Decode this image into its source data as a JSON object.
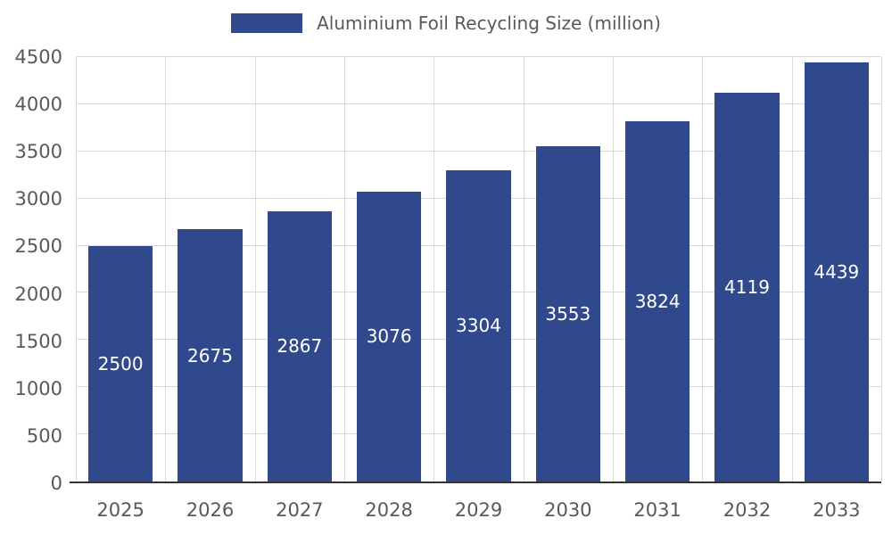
{
  "legend": {
    "label": "Aluminium Foil Recycling Size (million)"
  },
  "colors": {
    "bar": "#30498C",
    "grid": "#d9d9d9",
    "axis": "#333333",
    "tick_text": "#595959",
    "value_label": "#ffffff"
  },
  "chart_data": {
    "type": "bar",
    "title": "Aluminium Foil Recycling Size (million)",
    "categories": [
      "2025",
      "2026",
      "2027",
      "2028",
      "2029",
      "2030",
      "2031",
      "2032",
      "2033"
    ],
    "values": [
      2500,
      2675,
      2867,
      3076,
      3304,
      3553,
      3824,
      4119,
      4439
    ],
    "xlabel": "",
    "ylabel": "",
    "ylim": [
      0,
      4500
    ],
    "ytick_step": 500,
    "grid": true,
    "legend_position": "top"
  }
}
